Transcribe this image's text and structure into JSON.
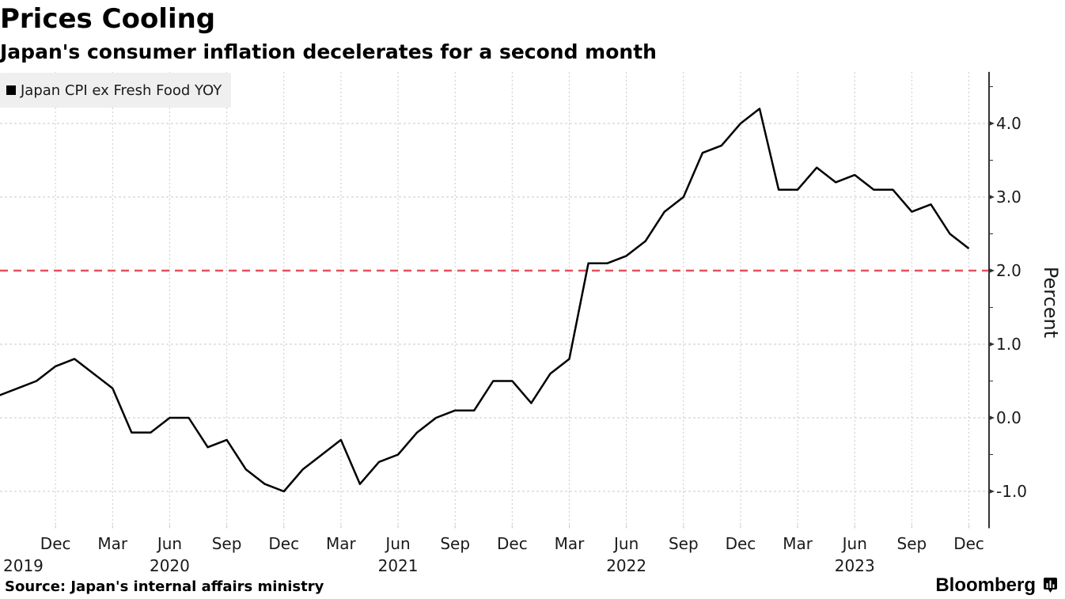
{
  "title": "Prices Cooling",
  "subtitle": "Japan's consumer inflation decelerates for a second month",
  "source": "Source: Japan's internal affairs ministry",
  "brand": "Bloomberg",
  "colors": {
    "line": "#000000",
    "target": "#e8505b",
    "grid": "#c8c8c8",
    "axis": "#333333",
    "legend_bg": "#efefef"
  },
  "chart_data": {
    "type": "line",
    "title": "Prices Cooling",
    "subtitle": "Japan's consumer inflation decelerates for a second month",
    "xlabel": "",
    "ylabel": "Percent",
    "ylim": [
      -1.5,
      4.7
    ],
    "yticks": [
      -1.0,
      0.0,
      1.0,
      2.0,
      3.0,
      4.0
    ],
    "ytick_labels": [
      "-1.0",
      "0.0",
      "1.0",
      "2.0",
      "3.0",
      "4.0"
    ],
    "y_minor_ticks": [
      -0.5,
      0.5,
      1.5,
      2.5,
      3.5,
      4.5
    ],
    "grid": true,
    "legend": {
      "position": "top-left",
      "entries": [
        "Japan CPI ex Fresh Food YOY"
      ]
    },
    "reference_line": {
      "value": 2.0,
      "style": "dashed",
      "color": "#e8505b"
    },
    "xticks": [
      {
        "month": "2019-12",
        "label": "Dec",
        "year": "2019"
      },
      {
        "month": "2020-03",
        "label": "Mar",
        "year": ""
      },
      {
        "month": "2020-06",
        "label": "Jun",
        "year": "2020"
      },
      {
        "month": "2020-09",
        "label": "Sep",
        "year": ""
      },
      {
        "month": "2020-12",
        "label": "Dec",
        "year": ""
      },
      {
        "month": "2021-03",
        "label": "Mar",
        "year": ""
      },
      {
        "month": "2021-06",
        "label": "Jun",
        "year": "2021"
      },
      {
        "month": "2021-09",
        "label": "Sep",
        "year": ""
      },
      {
        "month": "2021-12",
        "label": "Dec",
        "year": ""
      },
      {
        "month": "2022-03",
        "label": "Mar",
        "year": ""
      },
      {
        "month": "2022-06",
        "label": "Jun",
        "year": "2022"
      },
      {
        "month": "2022-09",
        "label": "Sep",
        "year": ""
      },
      {
        "month": "2022-12",
        "label": "Dec",
        "year": ""
      },
      {
        "month": "2023-03",
        "label": "Mar",
        "year": ""
      },
      {
        "month": "2023-06",
        "label": "Jun",
        "year": "2023"
      },
      {
        "month": "2023-09",
        "label": "Sep",
        "year": ""
      },
      {
        "month": "2023-12",
        "label": "Dec",
        "year": ""
      }
    ],
    "x": [
      "2019-09",
      "2019-10",
      "2019-11",
      "2019-12",
      "2020-01",
      "2020-02",
      "2020-03",
      "2020-04",
      "2020-05",
      "2020-06",
      "2020-07",
      "2020-08",
      "2020-09",
      "2020-10",
      "2020-11",
      "2020-12",
      "2021-01",
      "2021-02",
      "2021-03",
      "2021-04",
      "2021-05",
      "2021-06",
      "2021-07",
      "2021-08",
      "2021-09",
      "2021-10",
      "2021-11",
      "2021-12",
      "2022-01",
      "2022-02",
      "2022-03",
      "2022-04",
      "2022-05",
      "2022-06",
      "2022-07",
      "2022-08",
      "2022-09",
      "2022-10",
      "2022-11",
      "2022-12",
      "2023-01",
      "2023-02",
      "2023-03",
      "2023-04",
      "2023-05",
      "2023-06",
      "2023-07",
      "2023-08",
      "2023-09",
      "2023-10",
      "2023-11",
      "2023-12"
    ],
    "series": [
      {
        "name": "Japan CPI ex Fresh Food YOY",
        "values": [
          0.3,
          0.4,
          0.5,
          0.7,
          0.8,
          0.6,
          0.4,
          -0.2,
          -0.2,
          0.0,
          0.0,
          -0.4,
          -0.3,
          -0.7,
          -0.9,
          -1.0,
          -0.7,
          -0.5,
          -0.3,
          -0.9,
          -0.6,
          -0.5,
          -0.2,
          0.0,
          0.1,
          0.1,
          0.5,
          0.5,
          0.2,
          0.6,
          0.8,
          2.1,
          2.1,
          2.2,
          2.4,
          2.8,
          3.0,
          3.6,
          3.7,
          4.0,
          4.2,
          3.1,
          3.1,
          3.4,
          3.2,
          3.3,
          3.1,
          3.1,
          2.8,
          2.9,
          2.5,
          2.3
        ]
      }
    ]
  }
}
